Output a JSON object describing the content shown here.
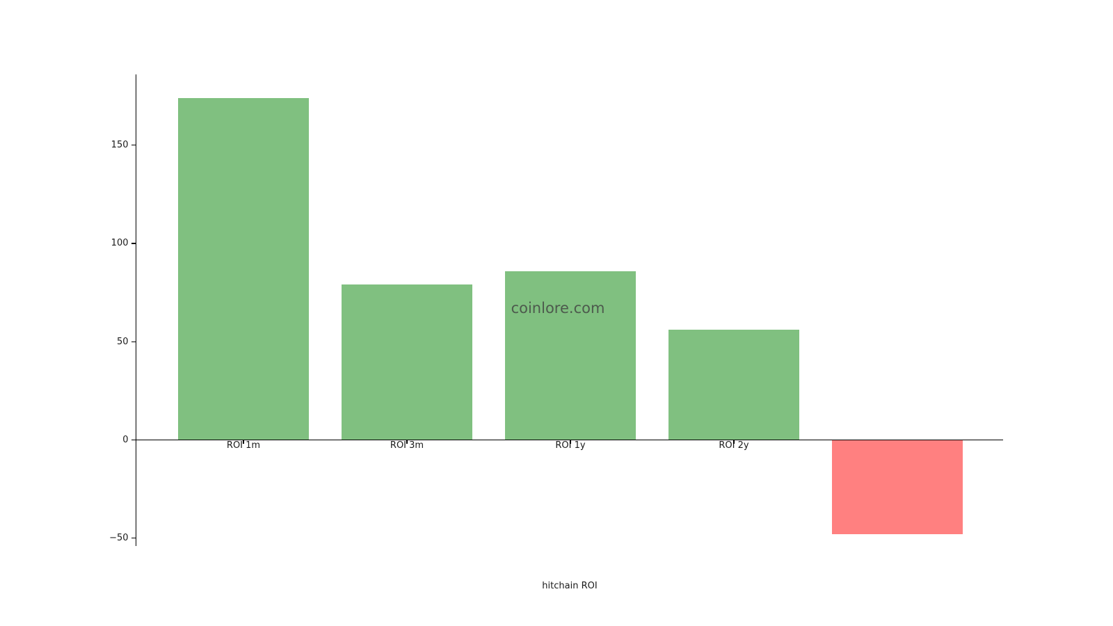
{
  "figure": {
    "background": "#ffffff"
  },
  "chart_data": {
    "type": "bar",
    "title": "hitchain ROI",
    "watermark": "coinlore.com",
    "categories": [
      "ROI 1m",
      "ROI 3m",
      "ROI 1y",
      "ROI 2y",
      ""
    ],
    "values": [
      174,
      79,
      86,
      56,
      -48
    ],
    "bar_colors": [
      "#80c080",
      "#80c080",
      "#80c080",
      "#80c080",
      "#ff8080"
    ],
    "positive_color": "#80c080",
    "negative_color": "#ff8080",
    "xlabel": "hitchain ROI",
    "ylabel": "",
    "yticks": [
      -50,
      0,
      50,
      100,
      150
    ],
    "ytick_labels": [
      "−50",
      "0",
      "50",
      "100",
      "150"
    ],
    "ylim": [
      -54,
      186
    ],
    "grid": false,
    "legend_position": "none",
    "axis_color": "#000000",
    "tick_label_color": "#1a1a1a",
    "watermark_color": "rgba(64,64,64,0.8)"
  }
}
